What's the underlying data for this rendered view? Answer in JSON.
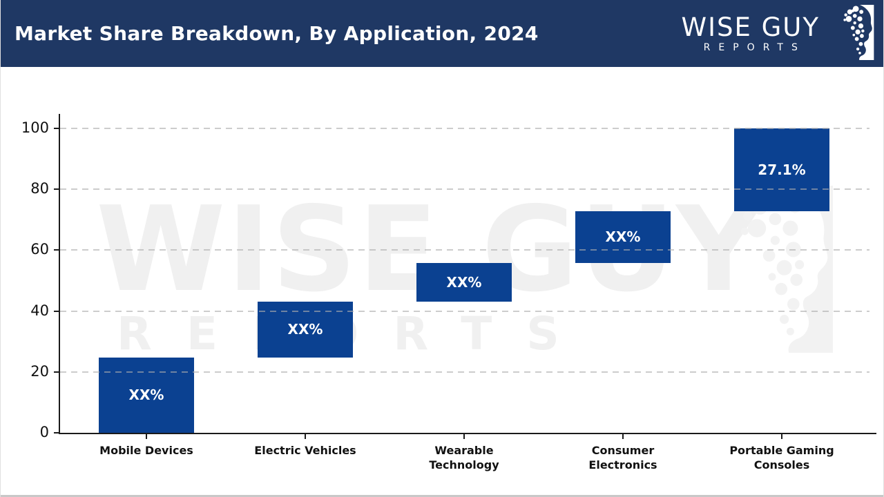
{
  "header": {
    "title": "Market Share Breakdown, By Application, 2024",
    "logo": {
      "line1": "WISE GUY",
      "line2": "REPORTS"
    },
    "bg_color": "#1f3864"
  },
  "watermark": {
    "line1": "WISE GUY",
    "line2": "REPORTS"
  },
  "chart_data": {
    "type": "bar",
    "subtype": "floating-waterfall",
    "title": "Market Share Breakdown, By Application, 2024",
    "categories": [
      "Mobile Devices",
      "Electric Vehicles",
      "Wearable Technology",
      "Consumer Electronics",
      "Portable Gaming Consoles"
    ],
    "categories_display": [
      "Mobile Devices",
      "Electric Vehicles",
      "Wearable\nTechnology",
      "Consumer\nElectronics",
      "Portable Gaming\nConsoles"
    ],
    "bars": [
      {
        "category": "Mobile Devices",
        "start": 0,
        "end": 24.8,
        "label": "XX%"
      },
      {
        "category": "Electric Vehicles",
        "start": 24.8,
        "end": 43.1,
        "label": "XX%"
      },
      {
        "category": "Wearable Technology",
        "start": 43.1,
        "end": 55.7,
        "label": "XX%"
      },
      {
        "category": "Consumer Electronics",
        "start": 55.7,
        "end": 72.9,
        "label": "XX%"
      },
      {
        "category": "Portable Gaming Consoles",
        "start": 72.9,
        "end": 100,
        "label": "27.1%"
      }
    ],
    "xlabel": "",
    "ylabel": "",
    "ylim": [
      0,
      100
    ],
    "yticks": [
      0,
      20,
      40,
      60,
      80,
      100
    ],
    "grid": "horizontal-dashed",
    "legend": "none",
    "bar_color": "#0b4191",
    "bar_label_color": "#ffffff",
    "axis_color": "#1a1a1a"
  }
}
